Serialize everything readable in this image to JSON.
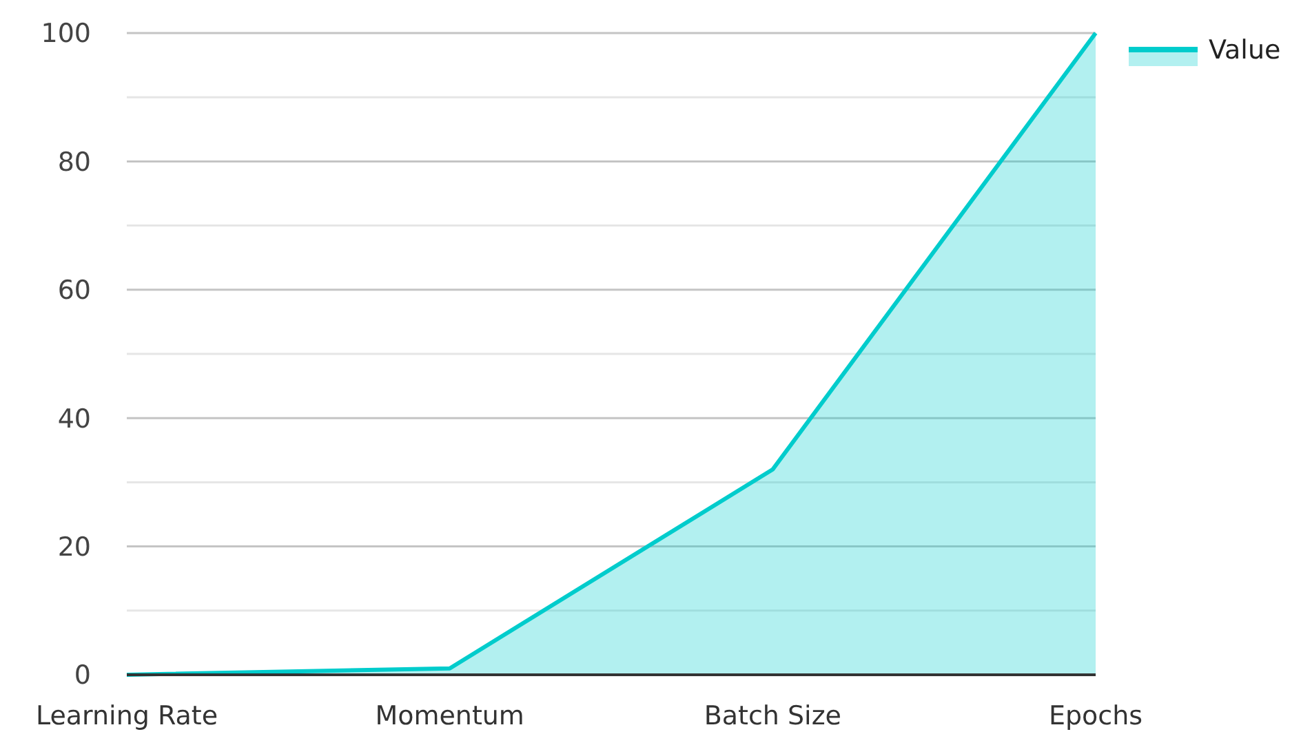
{
  "chart_data": {
    "type": "area",
    "categories": [
      "Learning Rate",
      "Momentum",
      "Batch Size",
      "Epochs"
    ],
    "series": [
      {
        "name": "Value",
        "color": "#00cccc",
        "values": [
          0,
          1,
          32,
          100
        ]
      }
    ],
    "ylim": [
      0,
      100
    ],
    "yticks": [
      0,
      {
        "value": 10,
        "label": null
      },
      20,
      {
        "value": 30,
        "label": null
      },
      40,
      {
        "value": 50,
        "label": null
      },
      60,
      {
        "value": 70,
        "label": null
      },
      80,
      {
        "value": 90,
        "label": null
      },
      100
    ],
    "grid": "y",
    "legend": "top right"
  }
}
